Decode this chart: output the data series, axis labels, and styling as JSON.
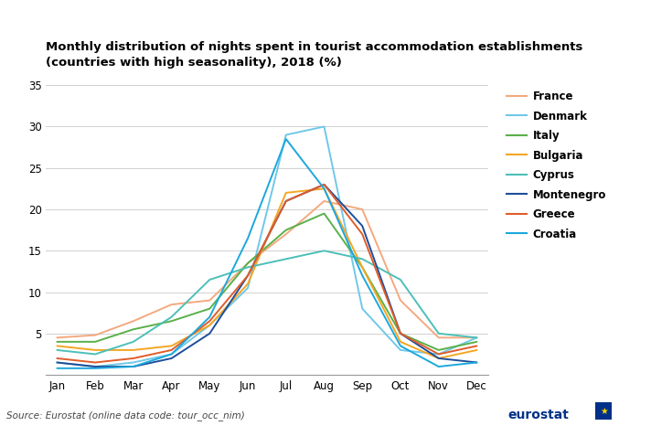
{
  "title": "Monthly distribution of nights spent in tourist accommodation establishments\n(countries with high seasonality), 2018 (%)",
  "months": [
    "Jan",
    "Feb",
    "Mar",
    "Apr",
    "May",
    "Jun",
    "Jul",
    "Aug",
    "Sep",
    "Oct",
    "Nov",
    "Dec"
  ],
  "series": {
    "France": [
      4.5,
      4.8,
      6.5,
      8.5,
      9.0,
      13.5,
      17.0,
      21.0,
      20.0,
      9.0,
      4.5,
      4.5
    ],
    "Denmark": [
      1.5,
      1.0,
      1.5,
      2.5,
      6.0,
      10.5,
      29.0,
      30.0,
      8.0,
      3.0,
      2.5,
      4.5
    ],
    "Italy": [
      4.0,
      4.0,
      5.5,
      6.5,
      8.0,
      13.5,
      17.5,
      19.5,
      13.0,
      5.0,
      3.0,
      4.0
    ],
    "Bulgaria": [
      3.5,
      3.0,
      3.0,
      3.5,
      6.0,
      11.0,
      22.0,
      22.5,
      13.0,
      4.0,
      2.0,
      3.0
    ],
    "Cyprus": [
      3.0,
      2.5,
      4.0,
      7.0,
      11.5,
      13.0,
      14.0,
      15.0,
      14.0,
      11.5,
      5.0,
      4.5
    ],
    "Montenegro": [
      1.5,
      1.0,
      1.0,
      2.0,
      5.0,
      12.0,
      21.0,
      23.0,
      18.0,
      5.0,
      2.0,
      1.5
    ],
    "Greece": [
      2.0,
      1.5,
      2.0,
      3.0,
      6.5,
      12.0,
      21.0,
      23.0,
      17.0,
      5.0,
      2.5,
      3.5
    ],
    "Croatia": [
      0.8,
      0.8,
      1.0,
      2.5,
      7.0,
      16.5,
      28.5,
      22.5,
      12.0,
      3.5,
      1.0,
      1.5
    ]
  },
  "colors": {
    "France": "#f4a97f",
    "Denmark": "#70c8e8",
    "Italy": "#5ab04a",
    "Bulgaria": "#f5a623",
    "Cyprus": "#4dbfb8",
    "Montenegro": "#1f4e99",
    "Greece": "#e05c2a",
    "Croatia": "#1ca8dd"
  },
  "legend_order": [
    "France",
    "Denmark",
    "Italy",
    "Bulgaria",
    "Cyprus",
    "Montenegro",
    "Greece",
    "Croatia"
  ],
  "ylim": [
    0,
    35
  ],
  "yticks": [
    0,
    5,
    10,
    15,
    20,
    25,
    30,
    35
  ],
  "source": "Source: Eurostat (online data code: tour_occ_nim)",
  "background_color": "#ffffff",
  "grid_color": "#d0d0d0"
}
